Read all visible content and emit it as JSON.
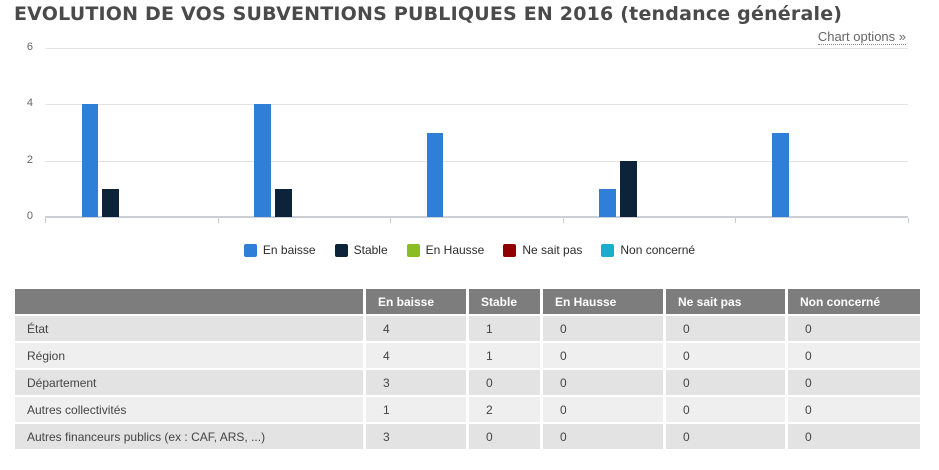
{
  "header": {
    "title": "EVOLUTION DE VOS SUBVENTIONS PUBLIQUES EN 2016 (tendance générale)",
    "chart_options_label": "Chart options »"
  },
  "chart_data": {
    "type": "bar",
    "title": "",
    "xlabel": "",
    "ylabel": "",
    "categories": [
      "État",
      "Région",
      "Département",
      "Autres collectivités",
      "Autres financeurs publics (ex : CAF, ARS, ...)"
    ],
    "series": [
      {
        "name": "En baisse",
        "color": "#2f7ed8",
        "values": [
          4,
          4,
          3,
          1,
          3
        ]
      },
      {
        "name": "Stable",
        "color": "#0d233a",
        "values": [
          1,
          1,
          0,
          2,
          0
        ]
      },
      {
        "name": "En Hausse",
        "color": "#8bbc21",
        "values": [
          0,
          0,
          0,
          0,
          0
        ]
      },
      {
        "name": "Ne sait pas",
        "color": "#910000",
        "values": [
          0,
          0,
          0,
          0,
          0
        ]
      },
      {
        "name": "Non concerné",
        "color": "#1aadce",
        "values": [
          0,
          0,
          0,
          0,
          0
        ]
      }
    ],
    "ylim": [
      0,
      6
    ],
    "yticks": [
      0,
      2,
      4,
      6
    ],
    "grid": true,
    "legend_position": "bottom",
    "x_axis_category_labels_visible": false
  },
  "table": {
    "columns": [
      "",
      "En baisse",
      "Stable",
      "En Hausse",
      "Ne sait pas",
      "Non concerné"
    ],
    "rows": [
      {
        "label": "État",
        "values": [
          "4",
          "1",
          "0",
          "0",
          "0"
        ]
      },
      {
        "label": "Région",
        "values": [
          "4",
          "1",
          "0",
          "0",
          "0"
        ]
      },
      {
        "label": "Département",
        "values": [
          "3",
          "0",
          "0",
          "0",
          "0"
        ]
      },
      {
        "label": "Autres collectivités",
        "values": [
          "1",
          "2",
          "0",
          "0",
          "0"
        ]
      },
      {
        "label": "Autres financeurs publics (ex : CAF, ARS, ...)",
        "values": [
          "3",
          "0",
          "0",
          "0",
          "0"
        ]
      }
    ]
  },
  "colors": {
    "table_header_bg": "#7d7d7d",
    "table_row_odd_bg": "#e3e3e3",
    "table_row_even_bg": "#efefef",
    "gridline": "#e4e4e4",
    "axis_line": "#ccd0d6",
    "title_text": "#4a4a4a",
    "link_text": "#666666"
  }
}
